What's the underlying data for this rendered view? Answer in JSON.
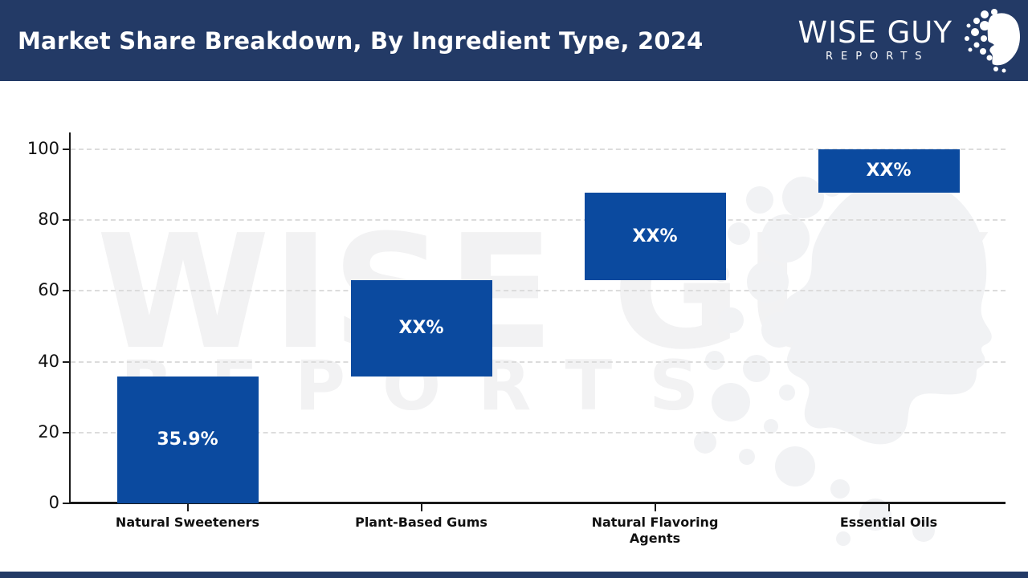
{
  "header": {
    "title": "Market Share Breakdown, By Ingredient Type, 2024",
    "logo_line1": "WISE GUY",
    "logo_line2": "REPORTS"
  },
  "watermark": {
    "line1": "WISE GUY",
    "line2": "REPORTS"
  },
  "colors": {
    "header_bg": "#233a66",
    "footer_bg": "#233a66",
    "bar_fill": "#0b4a9f",
    "bar_label": "#ffffff",
    "gridline": "#dcdcdc",
    "axis": "#1a1a1a",
    "watermark": "#f2f2f3"
  },
  "chart_data": {
    "type": "bar",
    "subtype": "waterfall",
    "title": "Market Share Breakdown, By Ingredient Type, 2024",
    "xlabel": "",
    "ylabel": "",
    "ylim": [
      0,
      100
    ],
    "yticks": [
      0,
      20,
      40,
      60,
      80,
      100
    ],
    "grid": true,
    "categories": [
      "Natural Sweeteners",
      "Plant-Based Gums",
      "Natural Flavoring\nAgents",
      "Essential Oils"
    ],
    "segments": [
      {
        "category": "Natural Sweeteners",
        "start": 0,
        "end": 35.9,
        "label": "35.9%"
      },
      {
        "category": "Plant-Based Gums",
        "start": 35.9,
        "end": 63.0,
        "label": "XX%"
      },
      {
        "category": "Natural Flavoring Agents",
        "start": 63.0,
        "end": 87.8,
        "label": "XX%"
      },
      {
        "category": "Essential Oils",
        "start": 87.8,
        "end": 100.0,
        "label": "XX%"
      }
    ]
  }
}
